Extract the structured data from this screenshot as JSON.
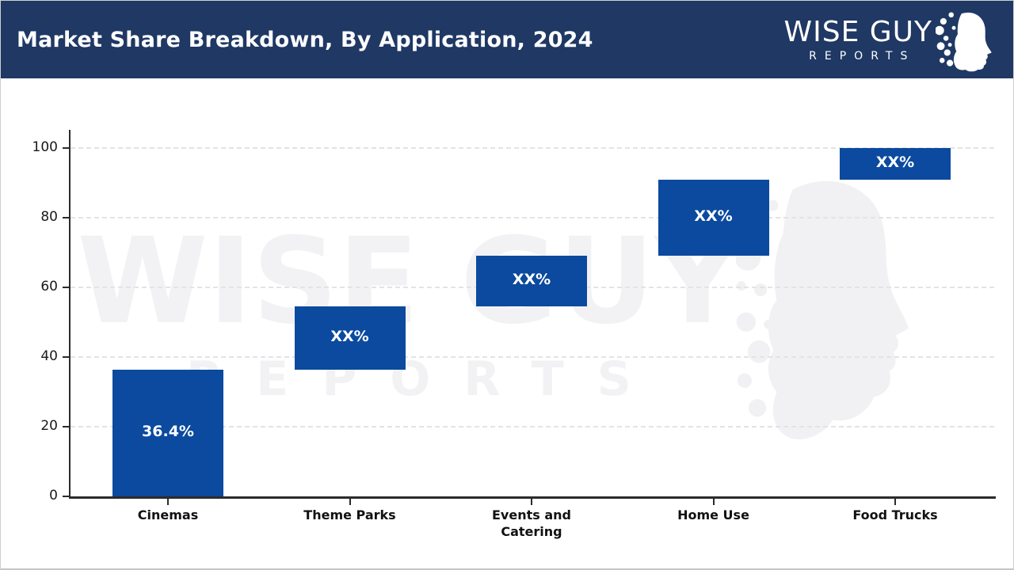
{
  "header": {
    "title": "Market Share Breakdown, By Application, 2024",
    "logo_line1": "WISE GUY",
    "logo_line2": "REPORTS"
  },
  "watermark": {
    "line1": "WISE GUY",
    "line2": "REPORTS"
  },
  "colors": {
    "header_bg": "#1f3864",
    "bar": "#0b4a9e",
    "bar_label": "#ffffff",
    "grid": "#e3e3e3",
    "axis": "#2b2b2b",
    "tick_label": "#1a1a1a",
    "watermark": "#f2f2f5"
  },
  "chart_data": {
    "type": "bar",
    "subtype": "waterfall",
    "title": "Market Share Breakdown, By Application, 2024",
    "categories": [
      "Cinemas",
      "Theme Parks",
      "Events and Catering",
      "Home Use",
      "Food Trucks"
    ],
    "series": [
      {
        "name": "Market share (%)",
        "segments": [
          {
            "category": "Cinemas",
            "from": 0,
            "to": 36.4,
            "label": "36.4%"
          },
          {
            "category": "Theme Parks",
            "from": 36.4,
            "to": 54.6,
            "label": "XX%"
          },
          {
            "category": "Events and Catering",
            "from": 54.6,
            "to": 69.1,
            "label": "XX%"
          },
          {
            "category": "Home Use",
            "from": 69.1,
            "to": 90.9,
            "label": "XX%"
          },
          {
            "category": "Food Trucks",
            "from": 90.9,
            "to": 100,
            "label": "XX%"
          }
        ]
      }
    ],
    "xlabel": "",
    "ylabel": "",
    "ylim": [
      0,
      100
    ],
    "yticks": [
      0,
      20,
      40,
      60,
      80,
      100
    ],
    "grid": "horizontal-dashed",
    "legend": "none"
  }
}
